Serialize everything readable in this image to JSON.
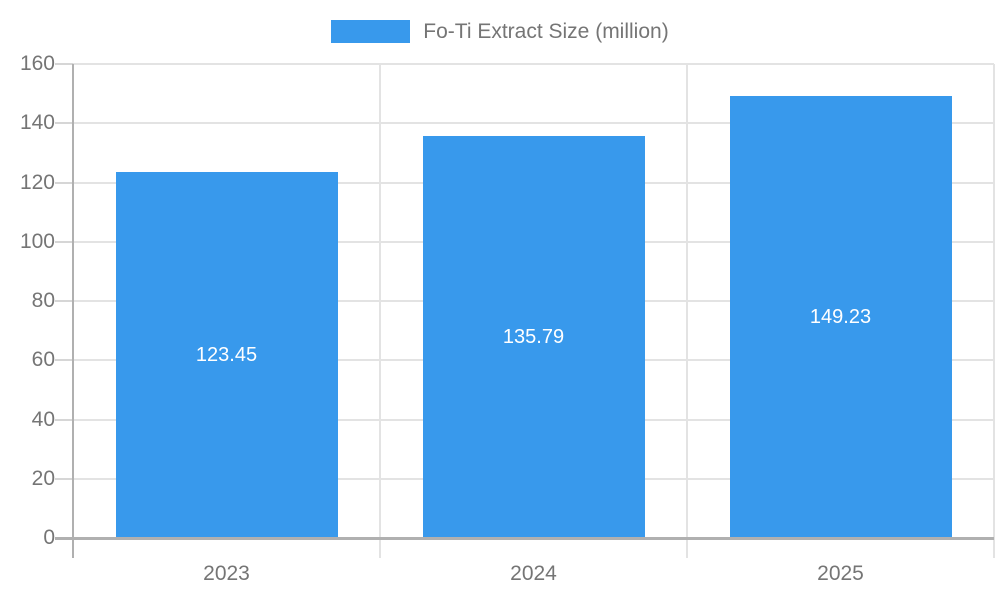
{
  "chart_data": {
    "type": "bar",
    "title": "",
    "legend_label": "Fo-Ti Extract Size (million)",
    "legend_position": "top",
    "categories": [
      "2023",
      "2024",
      "2025"
    ],
    "series": [
      {
        "name": "Fo-Ti Extract Size (million)",
        "values": [
          123.45,
          135.79,
          149.23
        ]
      }
    ],
    "data_labels": [
      "123.45",
      "135.79",
      "149.23"
    ],
    "xlabel": "",
    "ylabel": "",
    "ylim": [
      0,
      160
    ],
    "yticks": [
      0,
      20,
      40,
      60,
      80,
      100,
      120,
      140,
      160
    ],
    "grid": true,
    "colors": {
      "bar": "#3899EC",
      "text": "#757575",
      "data_label": "#FFFFFF",
      "axis_line": "#B0B0B0",
      "gridline": "#E3E3E3",
      "tick_mark": "#D6D6D6"
    }
  }
}
